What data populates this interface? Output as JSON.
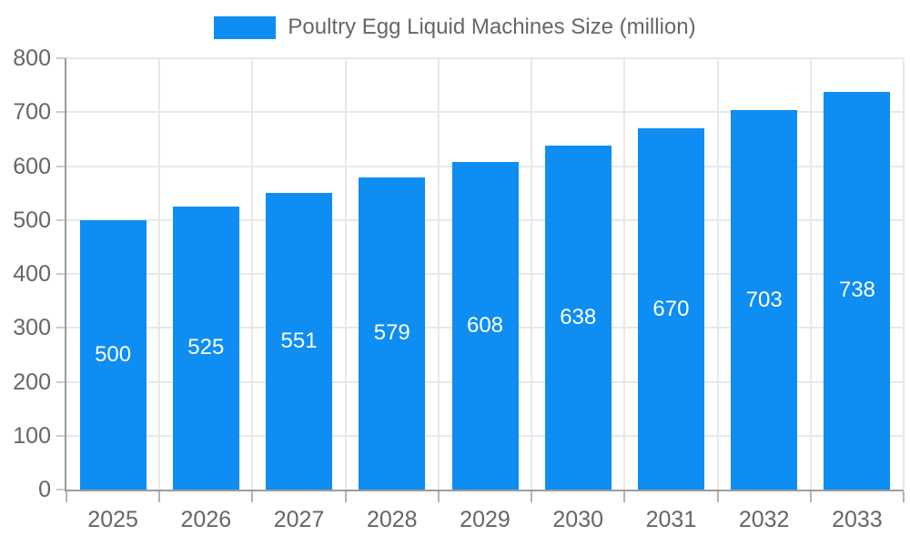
{
  "chart_data": {
    "type": "bar",
    "title": "Poultry Egg Liquid Machines Size (million)",
    "categories": [
      "2025",
      "2026",
      "2027",
      "2028",
      "2029",
      "2030",
      "2031",
      "2032",
      "2033"
    ],
    "values": [
      500,
      525,
      551,
      579,
      608,
      638,
      670,
      703,
      738
    ],
    "value_labels": [
      "500",
      "525",
      "551",
      "579",
      "608",
      "638",
      "670",
      "703",
      "738"
    ],
    "xlabel": "",
    "ylabel": "",
    "ylim": [
      0,
      800
    ],
    "ytick_labels": [
      "0",
      "100",
      "200",
      "300",
      "400",
      "500",
      "600",
      "700",
      "800"
    ],
    "ytick_values": [
      0,
      100,
      200,
      300,
      400,
      500,
      600,
      700,
      800
    ],
    "grid": true,
    "legend_position": "top",
    "colors": {
      "bar": "#0e8df2",
      "value_label": "#ffffff",
      "axis_text": "#666666",
      "gridline": "#e8e8e8",
      "axis_line": "#9c9c9c"
    }
  }
}
